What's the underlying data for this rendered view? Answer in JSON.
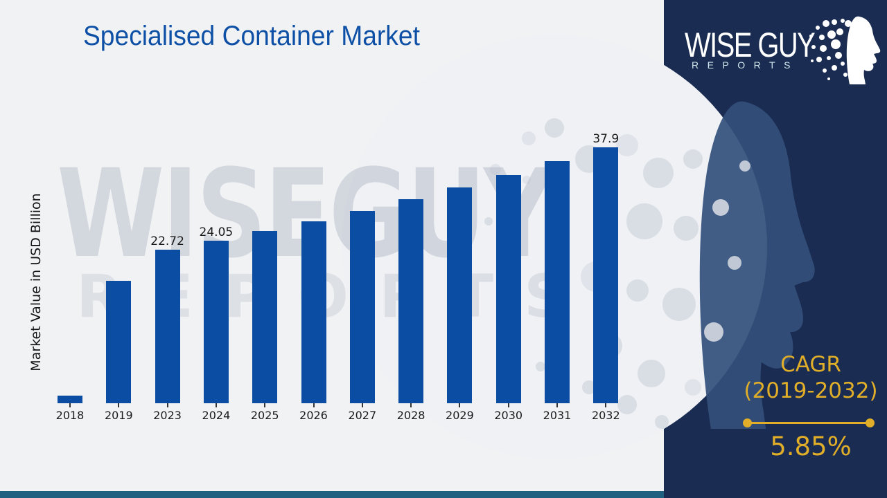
{
  "title": "Specialised Container Market",
  "y_axis_label": "Market Value in USD Billion",
  "watermark": {
    "line1": "WISEGUY",
    "line2": "REPORTS"
  },
  "brand": {
    "line1": "WISE GUY",
    "line2": "REPORTS"
  },
  "cagr": {
    "heading_line1": "CAGR",
    "heading_line2": "(2019-2032)",
    "value": "5.85%"
  },
  "colors": {
    "bg": "#f1f2f4",
    "bar": "#0b4da2",
    "title": "#0d50a6",
    "navy": "#1a2c52",
    "gold": "#e0ae28",
    "teal": "#1f5f7f",
    "watermark": "#aab3c0",
    "face": "#33507b"
  },
  "chart_data": {
    "type": "bar",
    "title": "Specialised Container Market",
    "xlabel": "",
    "ylabel": "Market Value in USD Billion",
    "unit": "USD Billion",
    "ylim": [
      0,
      40
    ],
    "grid": false,
    "legend": false,
    "categories": [
      "2018",
      "2019",
      "2023",
      "2024",
      "2025",
      "2026",
      "2027",
      "2028",
      "2029",
      "2030",
      "2031",
      "2032"
    ],
    "values": [
      1.12,
      18.1,
      22.72,
      24.05,
      25.46,
      26.95,
      28.52,
      30.19,
      31.96,
      33.83,
      35.81,
      37.9
    ],
    "bar_labels": [
      "",
      "",
      "22.72",
      "24.05",
      "",
      "",
      "",
      "",
      "",
      "",
      "",
      "37.9"
    ],
    "labeled_points_note": "only 22.72 (2023), 24.05 (2024) and 37.9 (2032) carry visible data labels; other values estimated from bar heights",
    "cagr_percent": 5.85,
    "cagr_period": "2019-2032"
  }
}
